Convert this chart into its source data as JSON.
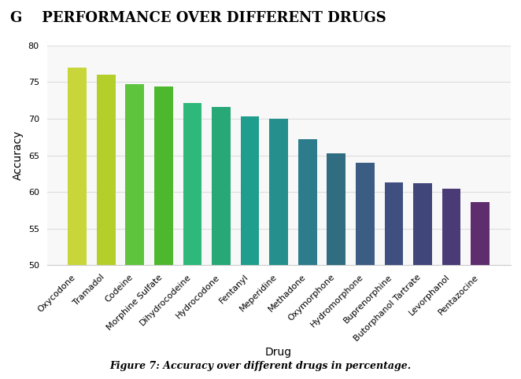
{
  "categories": [
    "Oxycodone",
    "Tramadol",
    "Codeine",
    "Morphine Sulfate",
    "Dihydrocodeine",
    "Hydrocodone",
    "Fentanyl",
    "Meperidine",
    "Methadone",
    "Oxymorphone",
    "Hydromorphone",
    "Buprenorphine",
    "Butorphanol Tartrate",
    "Levorphanol",
    "Pentazocine"
  ],
  "values": [
    77.0,
    76.0,
    74.7,
    74.4,
    72.2,
    71.6,
    70.3,
    70.0,
    67.2,
    65.3,
    64.0,
    61.3,
    61.2,
    60.4,
    58.6
  ],
  "bar_colors": [
    "#c8d63a",
    "#b5cf2a",
    "#5ec43e",
    "#4db82e",
    "#2eb87a",
    "#28a876",
    "#1f9e8e",
    "#248f8c",
    "#2d7c8c",
    "#306d80",
    "#3b5d83",
    "#3f4f7f",
    "#40457a",
    "#4a3a75",
    "#5e2d6e"
  ],
  "xlabel": "Drug",
  "ylabel": "Accuracy",
  "ylim": [
    50,
    80
  ],
  "yticks": [
    50,
    55,
    60,
    65,
    70,
    75,
    80
  ],
  "grid_color": "#dddddd",
  "header_text": "G    PERFORMANCE OVER DIFFERENT DRUGS",
  "caption_text": "Figure 7: Accuracy over different drugs in percentage.",
  "xlabel_fontsize": 10,
  "ylabel_fontsize": 10,
  "tick_fontsize": 8,
  "bar_width": 0.65
}
